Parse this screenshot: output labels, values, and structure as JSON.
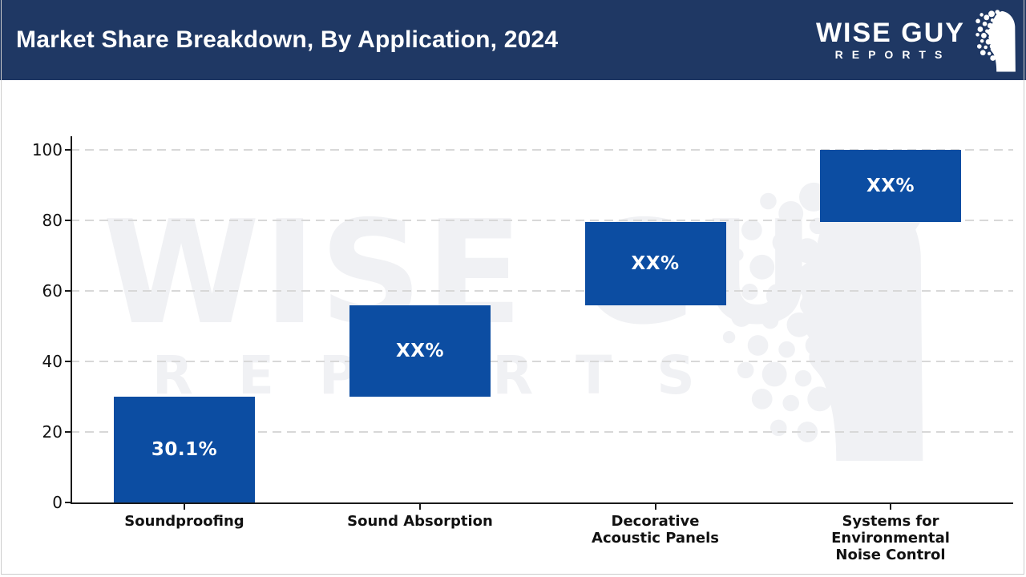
{
  "header": {
    "title": "Market Share Breakdown, By Application, 2024",
    "logo": {
      "line1": "WISE GUY",
      "line2": "REPORTS"
    }
  },
  "watermark": {
    "line1": "WISE GUY",
    "line2": "REPORTS"
  },
  "colors": {
    "header_bg": "#1f3864",
    "bar": "#0c4da2",
    "bar_label_text": "#ffffff",
    "grid": "#d8d8d8",
    "axis": "#1a1a1a",
    "watermark": "#f0f1f4"
  },
  "chart_data": {
    "type": "bar",
    "subtype": "floating-segment-waterfall",
    "title": "Market Share Breakdown, By Application, 2024",
    "categories": [
      "Soundproofing",
      "Sound Absorption",
      "Decorative Acoustic Panels",
      "Systems for Environmental Noise Control"
    ],
    "category_label_lines": [
      [
        "Soundproofing"
      ],
      [
        "Sound Absorption"
      ],
      [
        "Decorative",
        "Acoustic Panels"
      ],
      [
        "Systems for",
        "Environmental",
        "Noise Control"
      ]
    ],
    "segments": [
      {
        "category": "Soundproofing",
        "start": 0,
        "end": 30.1,
        "label": "30.1%"
      },
      {
        "category": "Sound Absorption",
        "start": 30.1,
        "end": 55.9,
        "label": "XX%"
      },
      {
        "category": "Decorative Acoustic Panels",
        "start": 55.9,
        "end": 79.5,
        "label": "XX%"
      },
      {
        "category": "Systems for Environmental Noise Control",
        "start": 79.5,
        "end": 100,
        "label": "XX%"
      }
    ],
    "ylim": [
      0,
      100
    ],
    "yticks": [
      0,
      20,
      40,
      60,
      80,
      100
    ],
    "xlabel": "",
    "ylabel": "",
    "grid": "horizontal dashed",
    "legend": "none"
  }
}
